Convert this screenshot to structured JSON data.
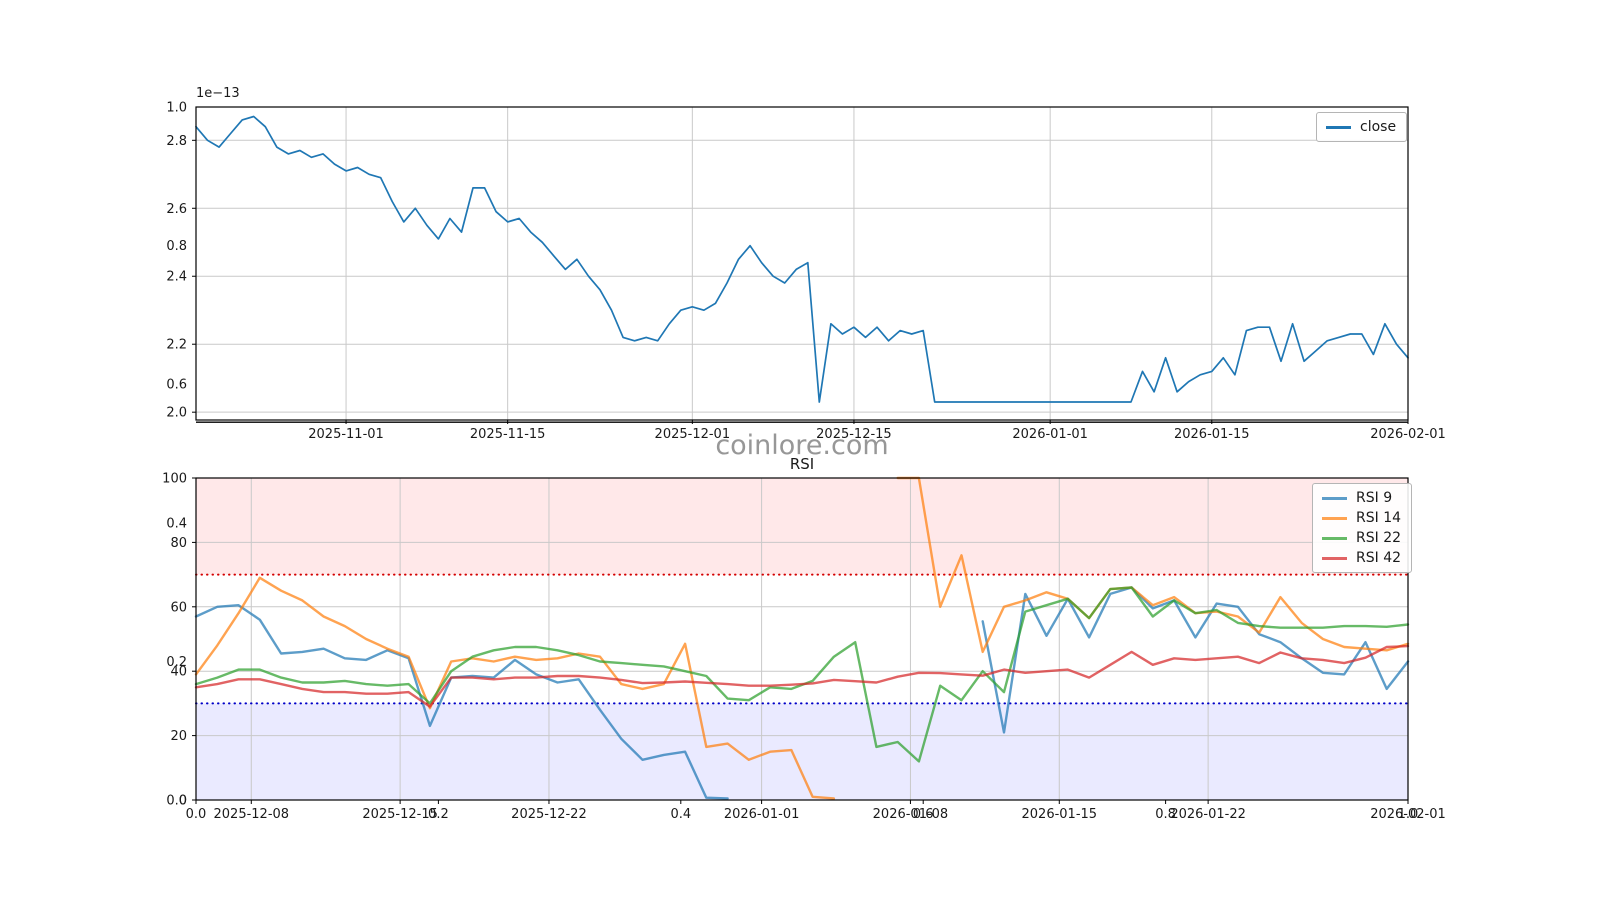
{
  "watermark": "coinlore.com",
  "overlay_axis": {
    "y_labels": [
      "1.0",
      "0.8",
      "0.6",
      "0.4",
      "0.2",
      "0.0"
    ],
    "x_labels": [
      "0.0",
      "0.2",
      "0.4",
      "0.6",
      "0.8",
      "1.0"
    ]
  },
  "chart_data": [
    {
      "type": "line",
      "title": "",
      "offset_label": "1e−13",
      "ylabel": "",
      "xlabel": "",
      "grid": true,
      "legend_position": "upper right",
      "ylim": [
        1.977,
        2.898
      ],
      "yticks": [
        {
          "v": 2.0,
          "label": "2.0"
        },
        {
          "v": 2.2,
          "label": "2.2"
        },
        {
          "v": 2.4,
          "label": "2.4"
        },
        {
          "v": 2.6,
          "label": "2.6"
        },
        {
          "v": 2.8,
          "label": "2.8"
        }
      ],
      "xticks": [
        {
          "pos": 13,
          "label": "2025-11-01"
        },
        {
          "pos": 27,
          "label": "2025-11-15"
        },
        {
          "pos": 43,
          "label": "2025-12-01"
        },
        {
          "pos": 57,
          "label": "2025-12-15"
        },
        {
          "pos": 74,
          "label": "2026-01-01"
        },
        {
          "pos": 88,
          "label": "2026-01-15"
        },
        {
          "pos": 105,
          "label": "2026-02-01"
        }
      ],
      "x_count": 106,
      "series": [
        {
          "name": "close",
          "color": "#1f77b4",
          "width": 1.7,
          "values": [
            2.84,
            2.8,
            2.78,
            2.82,
            2.86,
            2.87,
            2.84,
            2.78,
            2.76,
            2.77,
            2.75,
            2.76,
            2.73,
            2.71,
            2.72,
            2.7,
            2.69,
            2.62,
            2.56,
            2.6,
            2.55,
            2.51,
            2.57,
            2.53,
            2.66,
            2.66,
            2.59,
            2.56,
            2.57,
            2.53,
            2.5,
            2.46,
            2.42,
            2.45,
            2.4,
            2.36,
            2.3,
            2.22,
            2.21,
            2.22,
            2.21,
            2.26,
            2.3,
            2.31,
            2.3,
            2.32,
            2.38,
            2.45,
            2.49,
            2.44,
            2.4,
            2.38,
            2.42,
            2.44,
            2.03,
            2.26,
            2.23,
            2.25,
            2.22,
            2.25,
            2.21,
            2.24,
            2.23,
            2.24,
            2.03,
            2.03,
            2.03,
            2.03,
            2.03,
            2.03,
            2.03,
            2.03,
            2.03,
            2.03,
            2.03,
            2.03,
            2.03,
            2.03,
            2.03,
            2.03,
            2.03,
            2.03,
            2.12,
            2.06,
            2.16,
            2.06,
            2.09,
            2.11,
            2.12,
            2.16,
            2.11,
            2.24,
            2.25,
            2.25,
            2.15,
            2.26,
            2.15,
            2.18,
            2.21,
            2.22,
            2.23,
            2.23,
            2.17,
            2.26,
            2.2,
            2.16
          ]
        }
      ]
    },
    {
      "type": "line",
      "title": "RSI",
      "grid": true,
      "legend_position": "upper right",
      "ylim": [
        0,
        100
      ],
      "yticks": [
        {
          "v": 0,
          "label": "0"
        },
        {
          "v": 20,
          "label": "20"
        },
        {
          "v": 40,
          "label": "40"
        },
        {
          "v": 60,
          "label": "60"
        },
        {
          "v": 80,
          "label": "80"
        },
        {
          "v": 100,
          "label": "100"
        }
      ],
      "xticks": [
        {
          "pos": 2.6,
          "label": "2025-12-08"
        },
        {
          "pos": 9.6,
          "label": "2025-12-15"
        },
        {
          "pos": 16.6,
          "label": "2025-12-22"
        },
        {
          "pos": 26.6,
          "label": "2026-01-01"
        },
        {
          "pos": 33.6,
          "label": "2026-01-08"
        },
        {
          "pos": 40.6,
          "label": "2026-01-15"
        },
        {
          "pos": 47.6,
          "label": "2026-01-22"
        },
        {
          "pos": 57,
          "label": "2026-02-01"
        }
      ],
      "x_count": 58,
      "bands": [
        {
          "name": "overbought-band",
          "from": 70,
          "to": 100,
          "color": "rgba(255,30,40,0.10)"
        },
        {
          "name": "oversold-band",
          "from": 0,
          "to": 30,
          "color": "rgba(90,90,255,0.13)"
        }
      ],
      "hlines": [
        {
          "y": 70,
          "color": "#d40000"
        },
        {
          "y": 30,
          "color": "#0000c8"
        }
      ],
      "series": [
        {
          "name": "RSI 9",
          "color": "rgba(31,119,180,0.72)",
          "width": 2.4,
          "values": [
            57,
            60,
            60.5,
            56,
            45.5,
            46,
            47,
            44,
            43.5,
            46.5,
            44,
            23,
            38,
            38.5,
            38,
            43.5,
            39,
            36.5,
            37.5,
            28,
            19,
            12.5,
            14,
            15,
            0.7,
            0.5,
            null,
            null,
            null,
            null,
            null,
            null,
            null,
            null,
            null,
            null,
            null,
            55.5,
            21,
            64,
            51,
            62.5,
            50.5,
            64,
            66,
            59.5,
            62,
            50.5,
            61,
            60,
            51.5,
            49,
            44,
            39.5,
            39,
            49,
            34.5,
            43
          ]
        },
        {
          "name": "RSI 14",
          "color": "rgba(255,127,14,0.72)",
          "width": 2.4,
          "values": [
            39,
            48,
            58,
            69,
            65,
            62,
            57,
            54,
            50,
            47,
            44.5,
            28.5,
            43,
            44,
            43,
            44.5,
            43.5,
            44,
            45.5,
            44.5,
            36,
            34.5,
            36,
            48.5,
            16.5,
            17.5,
            12.5,
            15,
            15.5,
            1.0,
            0.5,
            null,
            null,
            100,
            100,
            60,
            76,
            46,
            60,
            62,
            64.5,
            62.5,
            56.5,
            65.5,
            66,
            60.5,
            63,
            58,
            58.5,
            57,
            52,
            63,
            55,
            50,
            47.5,
            47,
            46.5,
            48.5
          ]
        },
        {
          "name": "RSI 22",
          "color": "rgba(44,160,44,0.72)",
          "width": 2.4,
          "values": [
            36,
            38,
            40.5,
            40.5,
            38,
            36.5,
            36.5,
            37,
            36,
            35.5,
            36,
            30,
            40,
            44.5,
            46.5,
            47.5,
            47.5,
            46.5,
            45,
            43,
            42.5,
            42,
            41.5,
            40,
            38.5,
            31.5,
            31,
            35,
            34.5,
            37,
            44.5,
            49,
            16.5,
            18,
            12,
            35.5,
            31,
            40,
            33.5,
            58.5,
            60.5,
            62.5,
            56.5,
            65.5,
            66,
            57,
            62,
            58,
            59,
            55,
            54,
            53.5,
            53.5,
            53.5,
            54,
            54,
            53.8,
            54.5
          ]
        },
        {
          "name": "RSI 42",
          "color": "rgba(214,39,40,0.72)",
          "width": 2.4,
          "values": [
            35,
            36,
            37.5,
            37.5,
            36,
            34.5,
            33.5,
            33.5,
            33,
            33,
            33.5,
            29,
            38,
            38,
            37.5,
            38,
            38,
            38.5,
            38.5,
            38,
            37.3,
            36.3,
            36.5,
            36.8,
            36.4,
            36,
            35.5,
            35.5,
            35.8,
            36.2,
            37.3,
            36.9,
            36.5,
            38.3,
            39.5,
            39.4,
            39,
            38.6,
            40.5,
            39.5,
            40,
            40.5,
            38,
            42,
            46,
            42,
            44,
            43.5,
            44,
            44.5,
            42.5,
            45.8,
            44,
            43.5,
            42.5,
            44.2,
            47.5,
            47.8
          ]
        }
      ]
    }
  ]
}
